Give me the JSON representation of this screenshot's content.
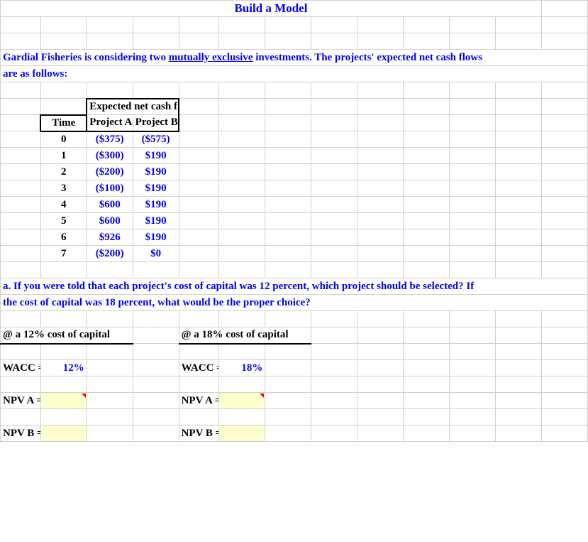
{
  "title": "Build a Model",
  "intro_line1_a": "Gardial Fisheries is considering two ",
  "intro_line1_b": "mutually exclusive",
  "intro_line1_c": " investments.  The projects' expected net cash flows",
  "intro_line2": "are as follows:",
  "table_header": "Expected net cash flows",
  "col_time": "Time",
  "col_a": "Project A",
  "col_b": "Project B",
  "rows": [
    {
      "t": "0",
      "a": "($375)",
      "b": "($575)"
    },
    {
      "t": "1",
      "a": "($300)",
      "b": "$190"
    },
    {
      "t": "2",
      "a": "($200)",
      "b": "$190"
    },
    {
      "t": "3",
      "a": "($100)",
      "b": "$190"
    },
    {
      "t": "4",
      "a": "$600",
      "b": "$190"
    },
    {
      "t": "5",
      "a": "$600",
      "b": "$190"
    },
    {
      "t": "6",
      "a": "$926",
      "b": "$190"
    },
    {
      "t": "7",
      "a": "($200)",
      "b": "$0"
    }
  ],
  "q_a1": "a.  If you were told that each project's cost of capital was 12 percent, which project should be selected?  If",
  "q_a2": "the cost of capital was 18 percent, what would be the proper choice?",
  "hdr12": "@ a 12% cost of capital",
  "hdr18": "@ a 18% cost of capital",
  "wacc_lbl": "WACC =",
  "wacc12": "12%",
  "wacc18": "18%",
  "npva_lbl": "NPV A =",
  "npvb_lbl": "NPV B =",
  "colors": {
    "blue": "#0000ff",
    "grid": "#d0d0d0",
    "highlight": "#ffffcc",
    "indicator": "#ff0000"
  }
}
